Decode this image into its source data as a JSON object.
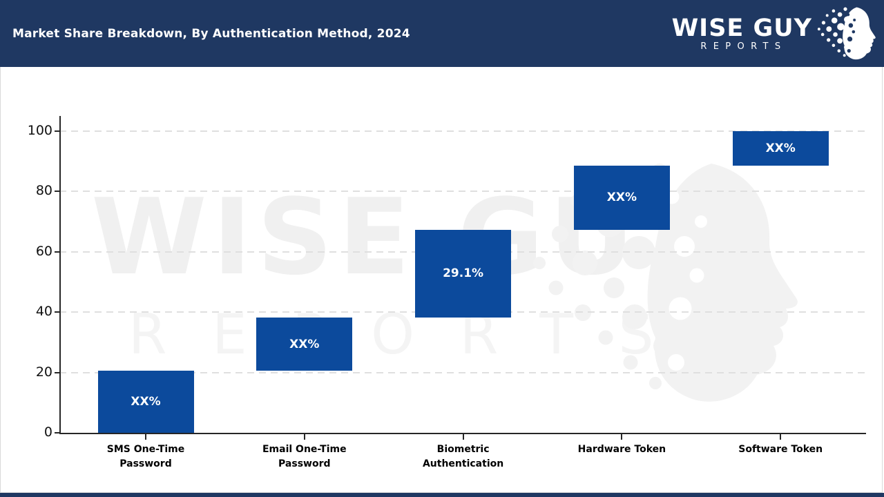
{
  "header": {
    "title": "Market Share Breakdown, By Authentication Method, 2024",
    "logo": {
      "line1": "WISE GUY",
      "line2": "REPORTS"
    }
  },
  "watermark": {
    "line1": "WISE GUY",
    "line2": "REPORTS"
  },
  "colors": {
    "header_bg": "#1f3862",
    "footer_bg": "#1f3862",
    "bar": "#0c4a9c",
    "bar_label_text": "#ffffff",
    "gridline": "#dfdfdf",
    "axis": "#262626",
    "watermark": "#f0f0f0"
  },
  "chart_data": {
    "type": "bar",
    "subtype": "waterfall",
    "title": "Market Share Breakdown, By Authentication Method, 2024",
    "unit": "%",
    "categories": [
      "SMS One-Time Password",
      "Email One-Time Password",
      "Biometric Authentication",
      "Hardware Token",
      "Software Token"
    ],
    "series": [
      {
        "name": "Market share",
        "segments": [
          {
            "category": "SMS One-Time Password",
            "start": 0,
            "end": 20.6,
            "label": "XX%"
          },
          {
            "category": "Email One-Time Password",
            "start": 20.6,
            "end": 38.2,
            "label": "XX%"
          },
          {
            "category": "Biometric Authentication",
            "start": 38.2,
            "end": 67.3,
            "value": 29.1,
            "label": "29.1%"
          },
          {
            "category": "Hardware Token",
            "start": 67.3,
            "end": 88.6,
            "label": "XX%"
          },
          {
            "category": "Software Token",
            "start": 88.6,
            "end": 100,
            "label": "XX%"
          }
        ]
      }
    ],
    "ylim": [
      0,
      100
    ],
    "yticks": [
      0,
      20,
      40,
      60,
      80,
      100
    ],
    "grid": {
      "horizontal": true,
      "style": "dashed"
    },
    "legend": "none"
  }
}
